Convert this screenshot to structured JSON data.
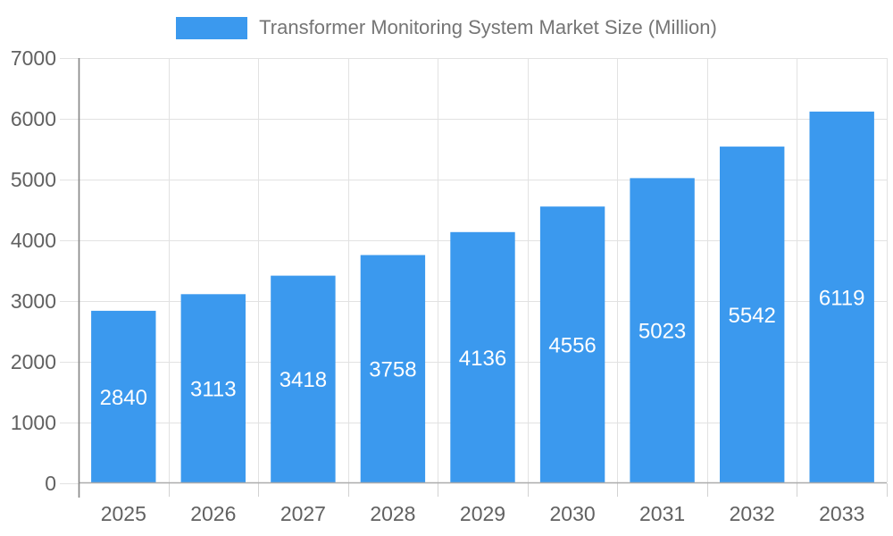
{
  "page": {
    "background": "#FFFFFF"
  },
  "legend": {
    "label": "Transformer Monitoring System Market Size (Million)",
    "swatch_color": "#3B99EE"
  },
  "chart_data": {
    "type": "bar",
    "title": "Transformer Monitoring System Market Size (Million)",
    "categories": [
      "2025",
      "2026",
      "2027",
      "2028",
      "2029",
      "2030",
      "2031",
      "2032",
      "2033"
    ],
    "values": [
      2840,
      3113,
      3418,
      3758,
      4136,
      4556,
      5023,
      5542,
      6119
    ],
    "value_labels": [
      "2840",
      "3113",
      "3418",
      "3758",
      "4136",
      "4556",
      "5023",
      "5542",
      "6119"
    ],
    "xlabel": "",
    "ylabel": "",
    "ylim": [
      0,
      7000
    ],
    "yticks": [
      0,
      1000,
      2000,
      3000,
      4000,
      5000,
      6000,
      7000
    ],
    "grid": true,
    "legend_position": "top-center",
    "bar_color": "#3B99EE",
    "value_label_color": "#FFFFFF",
    "axis_tick_label_color": "#616161",
    "gridline_color": "#E2E2E2",
    "x_axis_line_color": "#ABABAB",
    "y_axis_line_color": "#858585",
    "tick_mark_color": "#D2D2D2"
  }
}
